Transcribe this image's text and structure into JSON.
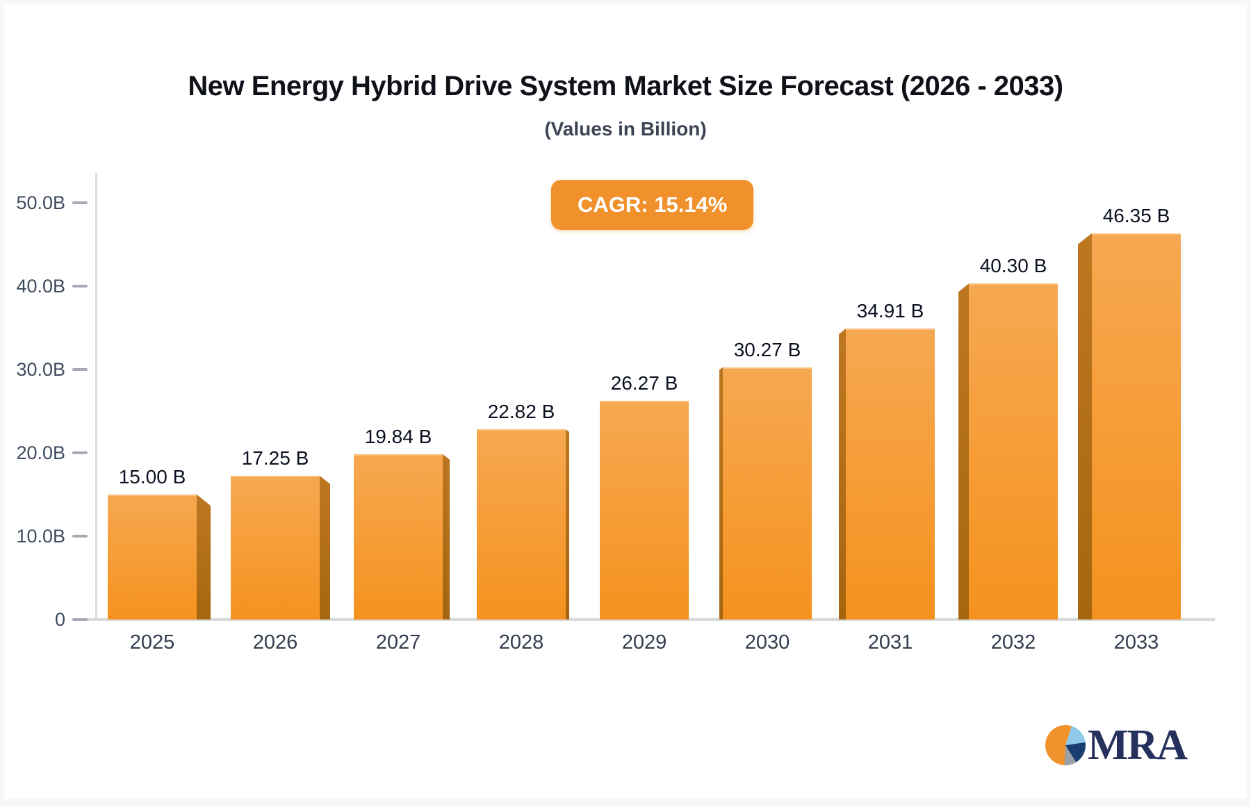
{
  "header": {
    "title": "New Energy Hybrid Drive System Market Size Forecast (2026 - 2033)",
    "subtitle": "(Values in Billion)"
  },
  "badge": {
    "label": "CAGR: 15.14%",
    "background_color": "#f0912c",
    "text_color": "#ffffff"
  },
  "chart_data": {
    "type": "bar",
    "title": "New Energy Hybrid Drive System Market Size Forecast (2026 - 2033)",
    "subtitle": "(Values in Billion)",
    "cagr_label": "CAGR: 15.14%",
    "unit": "Billion",
    "categories": [
      "2025",
      "2026",
      "2027",
      "2028",
      "2029",
      "2030",
      "2031",
      "2032",
      "2033"
    ],
    "values": [
      15.0,
      17.25,
      19.84,
      22.82,
      26.27,
      30.27,
      34.91,
      40.3,
      46.35
    ],
    "value_labels": [
      "15.00 B",
      "17.25 B",
      "19.84 B",
      "22.82 B",
      "26.27 B",
      "30.27 B",
      "34.91 B",
      "40.30 B",
      "46.35 B"
    ],
    "yticks": [
      {
        "value": 0,
        "label": "0"
      },
      {
        "value": 10,
        "label": "10.0B"
      },
      {
        "value": 20,
        "label": "20.0B"
      },
      {
        "value": 30,
        "label": "30.0B"
      },
      {
        "value": 40,
        "label": "40.0B"
      },
      {
        "value": 50,
        "label": "50.0B"
      }
    ],
    "ylim": [
      0,
      50
    ],
    "grid": false,
    "legend": "none",
    "bar_color_top": "#f6a851",
    "bar_color_bottom": "#f5921e",
    "bar_side_color_top": "#be7721",
    "bar_side_color_bottom": "#a5660f",
    "axis_color": "#d8dadc",
    "tick_color": "#3e4a5e",
    "value_label_color": "#0b1120"
  },
  "logo": {
    "text": "MRA",
    "pie_colors": [
      "#f0932d",
      "#8fc8e9",
      "#1b3e70",
      "#9ca1a8"
    ]
  }
}
